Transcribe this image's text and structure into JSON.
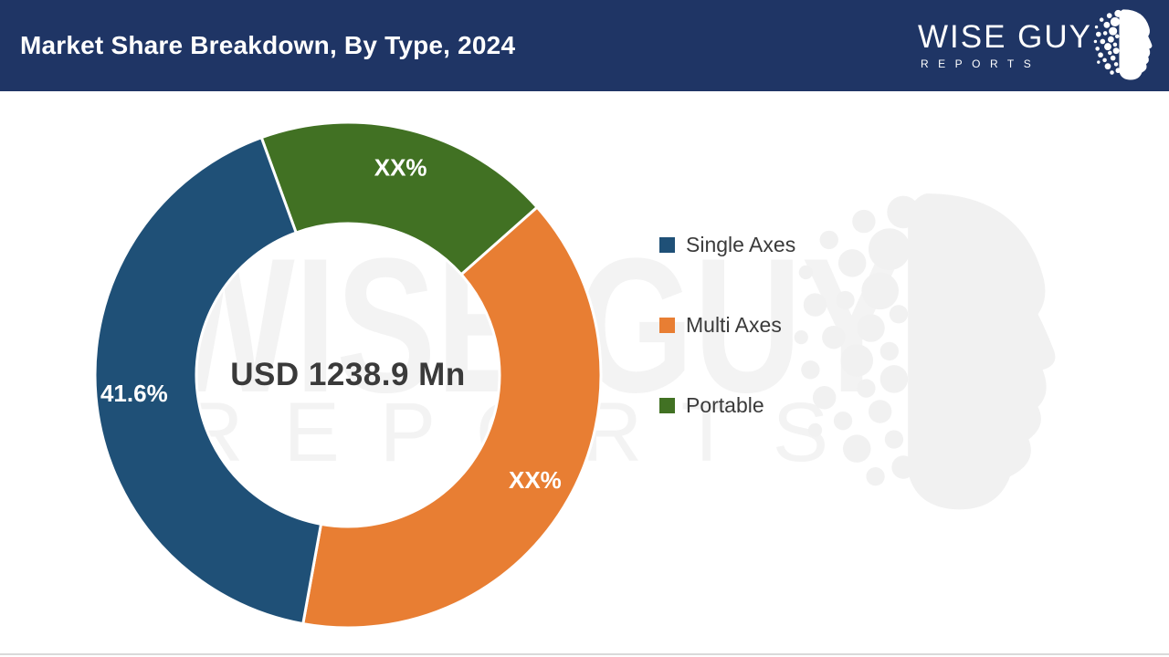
{
  "header": {
    "title": "Market Share Breakdown, By Type, 2024",
    "logo": {
      "line1": "WISE GUY",
      "line2": "REPORTS"
    }
  },
  "watermark": {
    "line1": "WISE GUY",
    "line2": "REPORTS"
  },
  "chart_data": {
    "type": "pie",
    "subtype": "donut",
    "title": "Market Share Breakdown, By Type, 2024",
    "center_label": "USD 1238.9 Mn",
    "start_angle_deg": -20,
    "legend_position": "right",
    "segments": [
      {
        "name": "Portable",
        "display_label": "XX%",
        "percent_est": 19.0,
        "color": "#417123"
      },
      {
        "name": "Multi Axes",
        "display_label": "XX%",
        "percent_est": 39.4,
        "color": "#E87E33"
      },
      {
        "name": "Single Axes",
        "display_label": "41.6%",
        "percent_est": 41.6,
        "color": "#1F5077"
      }
    ],
    "legend": [
      "Single Axes",
      "Multi Axes",
      "Portable"
    ]
  },
  "colors": {
    "header_bg": "#1F3565",
    "slice_label_text": "#FFFFFF",
    "center_text": "#3A3A3A",
    "watermark": "#F3F3F3",
    "divider": "#D9D9D9"
  }
}
